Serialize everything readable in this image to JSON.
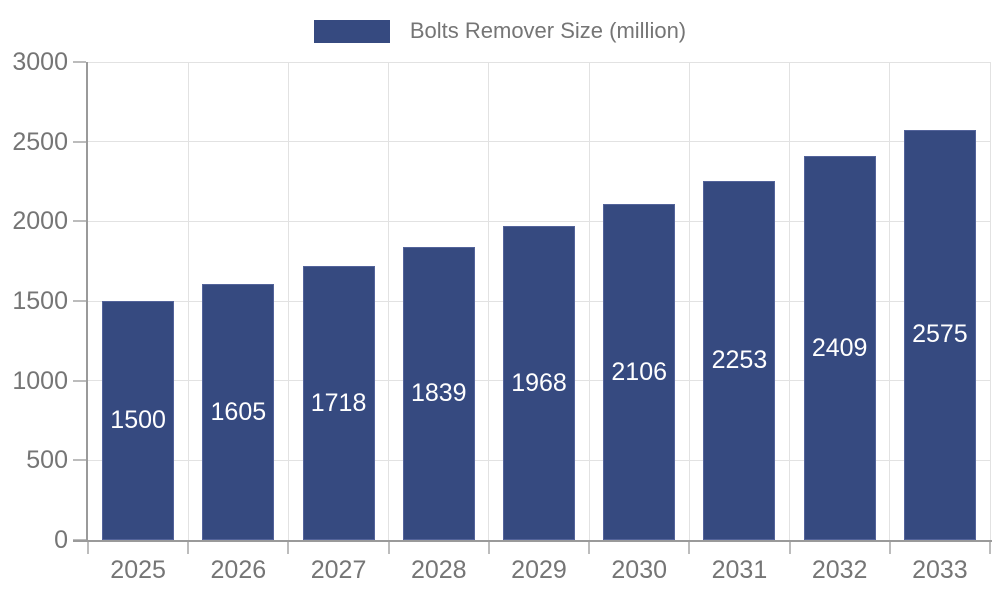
{
  "legend": {
    "label": "Bolts Remover Size (million)"
  },
  "chart_data": {
    "type": "bar",
    "title": "Bolts Remover Size (million)",
    "categories": [
      "2025",
      "2026",
      "2027",
      "2028",
      "2029",
      "2030",
      "2031",
      "2032",
      "2033"
    ],
    "series": [
      {
        "name": "Bolts Remover Size (million)",
        "values": [
          1500,
          1605,
          1718,
          1839,
          1968,
          2106,
          2253,
          2409,
          2575
        ]
      }
    ],
    "values": [
      1500,
      1605,
      1718,
      1839,
      1968,
      2106,
      2253,
      2409,
      2575
    ],
    "bar_labels": [
      "1500",
      "1605",
      "1718",
      "1839",
      "1968",
      "2106",
      "2253",
      "2409",
      "2575"
    ],
    "xlabel": "",
    "ylabel": "",
    "ylim": [
      0,
      3000
    ],
    "yticks": [
      0,
      500,
      1000,
      1500,
      2000,
      2500,
      3000
    ],
    "ytick_labels": [
      "0",
      "500",
      "1000",
      "1500",
      "2000",
      "2500",
      "3000"
    ],
    "grid": true,
    "legend_position": "top",
    "colors": {
      "bar_fill": "#364A80",
      "bar_border": "#53639A",
      "bar_label": "#FFFFFF",
      "axis_line": "#9A9A9A",
      "gridline": "#E2E2E2",
      "tick_mark": "#BCBCBC",
      "tick_label": "#757575",
      "legend_text": "#757575",
      "background": "#FFFFFF"
    }
  }
}
